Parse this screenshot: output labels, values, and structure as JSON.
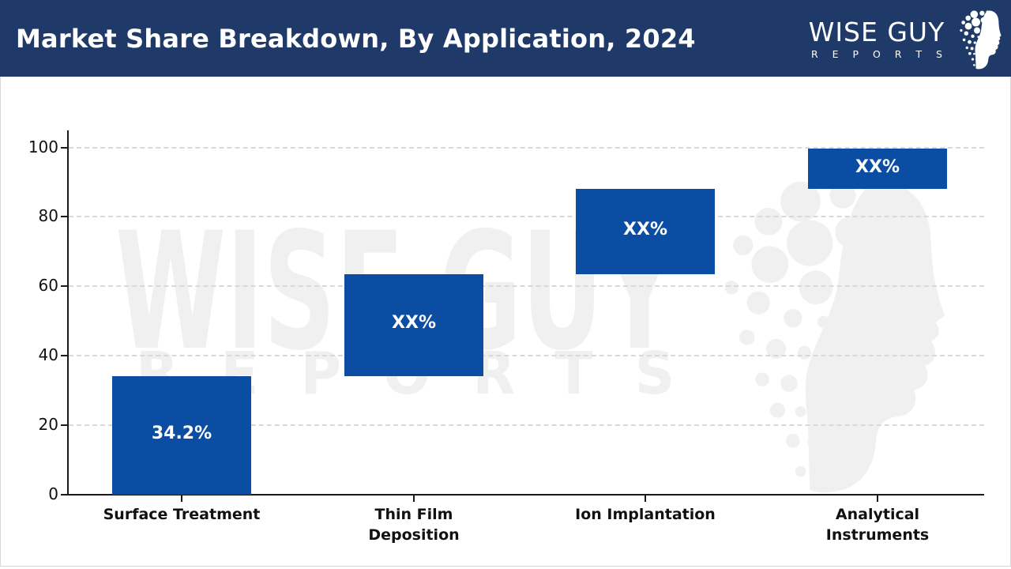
{
  "header": {
    "title": "Market Share Breakdown, By Application, 2024",
    "logo": {
      "line1": "WISE GUY",
      "line2": "R E P O R T S"
    }
  },
  "watermark": {
    "line1": "WISE GUY",
    "line2": "REPORTS"
  },
  "colors": {
    "header_bg": "#1f3a68",
    "bar": "#0b4da2",
    "bar_label": "#ffffff",
    "gridline": "#d9d9d9",
    "axis": "#1a1a1a",
    "watermark": "#f0f0f1"
  },
  "chart_data": {
    "type": "bar",
    "subtype": "waterfall",
    "title": "Market Share Breakdown, By Application, 2024",
    "xlabel": "",
    "ylabel": "",
    "categories": [
      "Surface Treatment",
      "Thin Film\nDeposition",
      "Ion Implantation",
      "Analytical\nInstruments"
    ],
    "segments": [
      {
        "category": "Surface Treatment",
        "start": 0,
        "end": 34.2,
        "label": "34.2%"
      },
      {
        "category": "Thin Film Deposition",
        "start": 34.2,
        "end": 63.5,
        "label": "XX%"
      },
      {
        "category": "Ion Implantation",
        "start": 63.5,
        "end": 88.1,
        "label": "XX%"
      },
      {
        "category": "Analytical Instruments",
        "start": 88.1,
        "end": 99.6,
        "label": "XX%"
      }
    ],
    "y_ticks": [
      0,
      20,
      40,
      60,
      80,
      100
    ],
    "ylim": [
      0,
      105
    ],
    "grid": "horizontal-dashed",
    "legend": false,
    "bar_color": "#0b4da2"
  }
}
